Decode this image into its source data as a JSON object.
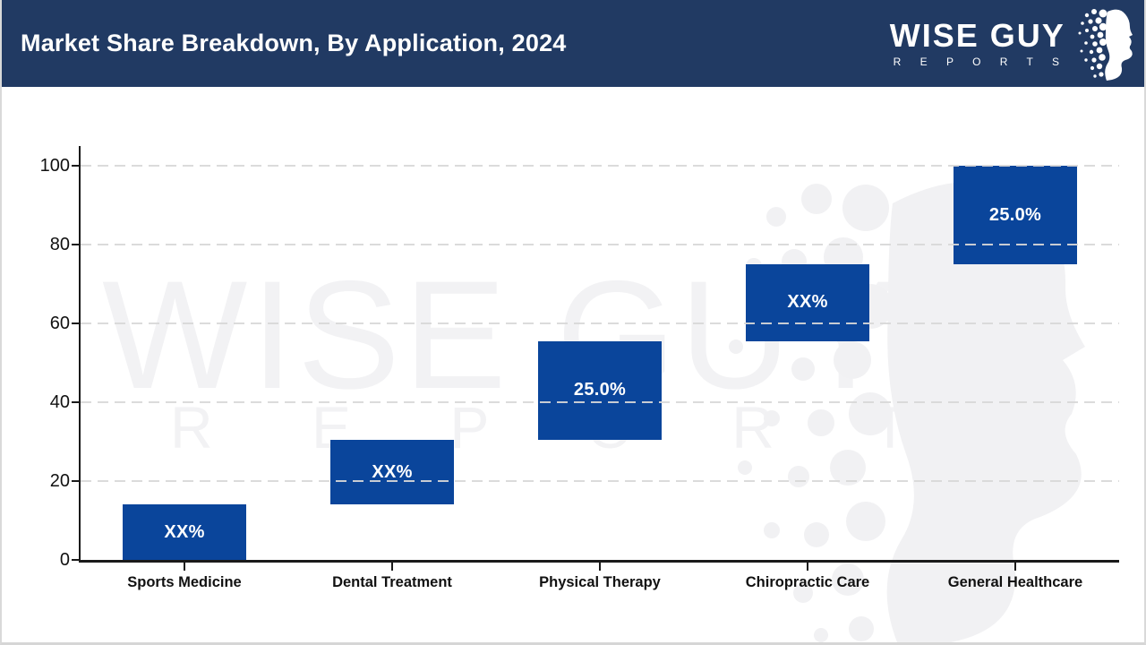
{
  "header": {
    "title": "Market Share Breakdown, By Application, 2024",
    "logo": {
      "line1": "WISE GUY",
      "line2": "R E P O R T S",
      "head_icon": "dotted-face-profile"
    }
  },
  "watermark": {
    "line1": "WISE GUY",
    "line2": "R E P O R T S"
  },
  "chart_data": {
    "type": "bar",
    "subtype": "floating-waterfall",
    "title": "Market Share Breakdown, By Application, 2024",
    "categories": [
      "Sports Medicine",
      "Dental Treatment",
      "Physical Therapy",
      "Chiropractic Care",
      "General Healthcare"
    ],
    "segments": [
      {
        "category": "Sports Medicine",
        "start": 0,
        "end": 14,
        "label": "XX%"
      },
      {
        "category": "Dental Treatment",
        "start": 14,
        "end": 30.5,
        "label": "XX%"
      },
      {
        "category": "Physical Therapy",
        "start": 30.5,
        "end": 55.5,
        "label": "25.0%"
      },
      {
        "category": "Chiropractic Care",
        "start": 55.5,
        "end": 75,
        "label": "XX%"
      },
      {
        "category": "General Healthcare",
        "start": 75,
        "end": 100,
        "label": "25.0%"
      }
    ],
    "xlabel": "",
    "ylabel": "",
    "ylim": [
      0,
      105
    ],
    "yticks": [
      0,
      20,
      40,
      60,
      80,
      100
    ],
    "grid": "horizontal-dashed",
    "legend": "none"
  },
  "colors": {
    "header_bg": "#213a63",
    "bar": "#0a459b",
    "bar_label": "#ffffff",
    "axis": "#1a1a1a",
    "gridline": "#d8d8d8",
    "watermark": "#f2f2f4",
    "page_bg": "#ffffff"
  }
}
